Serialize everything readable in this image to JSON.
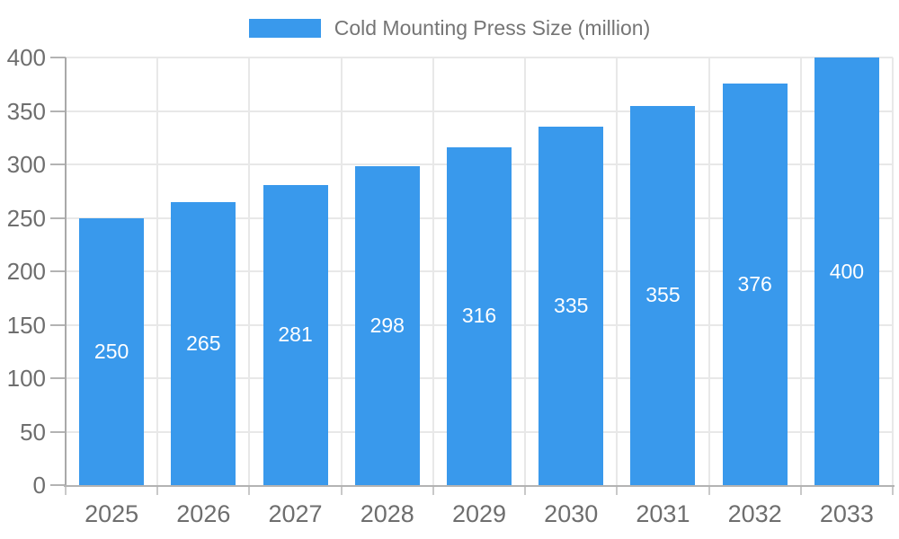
{
  "legend": {
    "label": "Cold Mounting Press Size (million)"
  },
  "chart_data": {
    "type": "bar",
    "title": "Cold Mounting Press Size (million)",
    "categories": [
      "2025",
      "2026",
      "2027",
      "2028",
      "2029",
      "2030",
      "2031",
      "2032",
      "2033"
    ],
    "values": [
      250,
      265,
      281,
      298,
      316,
      335,
      355,
      376,
      400
    ],
    "xlabel": "",
    "ylabel": "",
    "ylim": [
      0,
      400
    ],
    "yticks": [
      0,
      50,
      100,
      150,
      200,
      250,
      300,
      350,
      400
    ],
    "grid": true,
    "legend_position": "top-center",
    "bar_color": "#3999EC",
    "bar_label_color": "#ffffff",
    "axis_label_color": "#6e6e6e",
    "legend_text_color": "#757575",
    "grid_color": "#e8e8e8",
    "axis_line_color": "#b3b3b3"
  }
}
